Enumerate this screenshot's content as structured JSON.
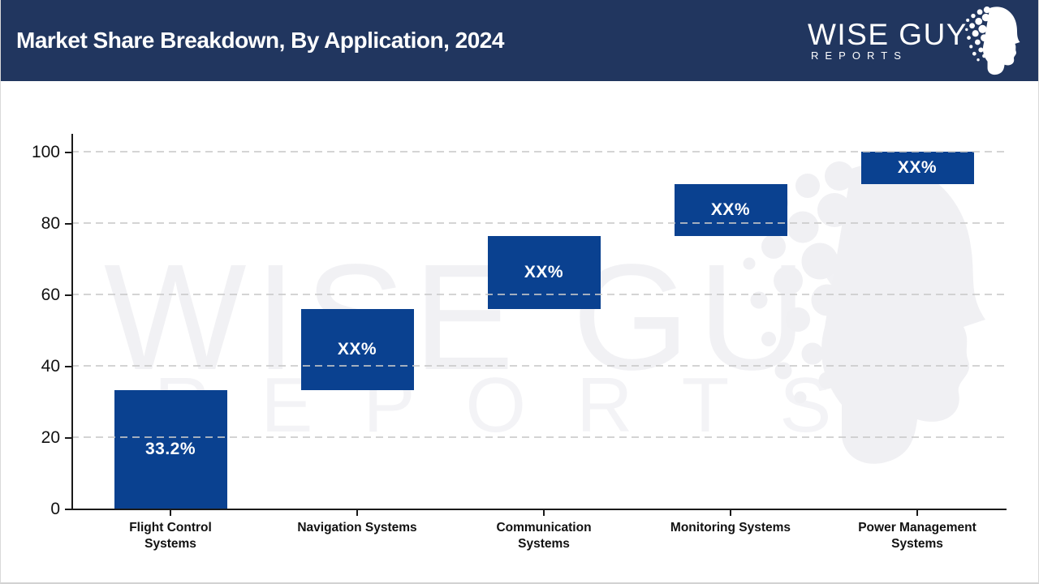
{
  "header": {
    "title": "Market Share Breakdown, By Application, 2024",
    "logo": {
      "name_top": "WISE GUY",
      "name_bottom": "REPORTS"
    }
  },
  "watermark": {
    "line1": "WISE GUY",
    "line2": "REPORTS"
  },
  "colors": {
    "header_bg": "#21365f",
    "bar": "#0a4190",
    "grid": "#c9c9c9",
    "axis": "#1a1a1a",
    "bar_label": "#ffffff",
    "watermark": "#f1f1f4"
  },
  "chart_data": {
    "type": "bar",
    "subtype": "waterfall",
    "title": "Market Share Breakdown, By Application, 2024",
    "categories": [
      "Flight Control Systems",
      "Navigation Systems",
      "Communication Systems",
      "Monitoring Systems",
      "Power Management Systems"
    ],
    "category_tick_lines": [
      [
        "Flight Control",
        "Systems"
      ],
      [
        "Navigation Systems"
      ],
      [
        "Communication",
        "Systems"
      ],
      [
        "Monitoring Systems"
      ],
      [
        "Power Management",
        "Systems"
      ]
    ],
    "bars": [
      {
        "category": "Flight Control Systems",
        "start": 0,
        "end": 33.2,
        "label": "33.2%"
      },
      {
        "category": "Navigation Systems",
        "start": 33.2,
        "end": 56.0,
        "label": "XX%"
      },
      {
        "category": "Communication Systems",
        "start": 56.0,
        "end": 76.4,
        "label": "XX%"
      },
      {
        "category": "Monitoring Systems",
        "start": 76.4,
        "end": 90.9,
        "label": "XX%"
      },
      {
        "category": "Power Management Systems",
        "start": 90.9,
        "end": 100,
        "label": "XX%"
      }
    ],
    "xlabel": "",
    "ylabel": "",
    "yticks": [
      0,
      20,
      40,
      60,
      80,
      100
    ],
    "ylim": [
      0,
      105
    ],
    "grid": "horizontal-dashed",
    "legend": null
  }
}
